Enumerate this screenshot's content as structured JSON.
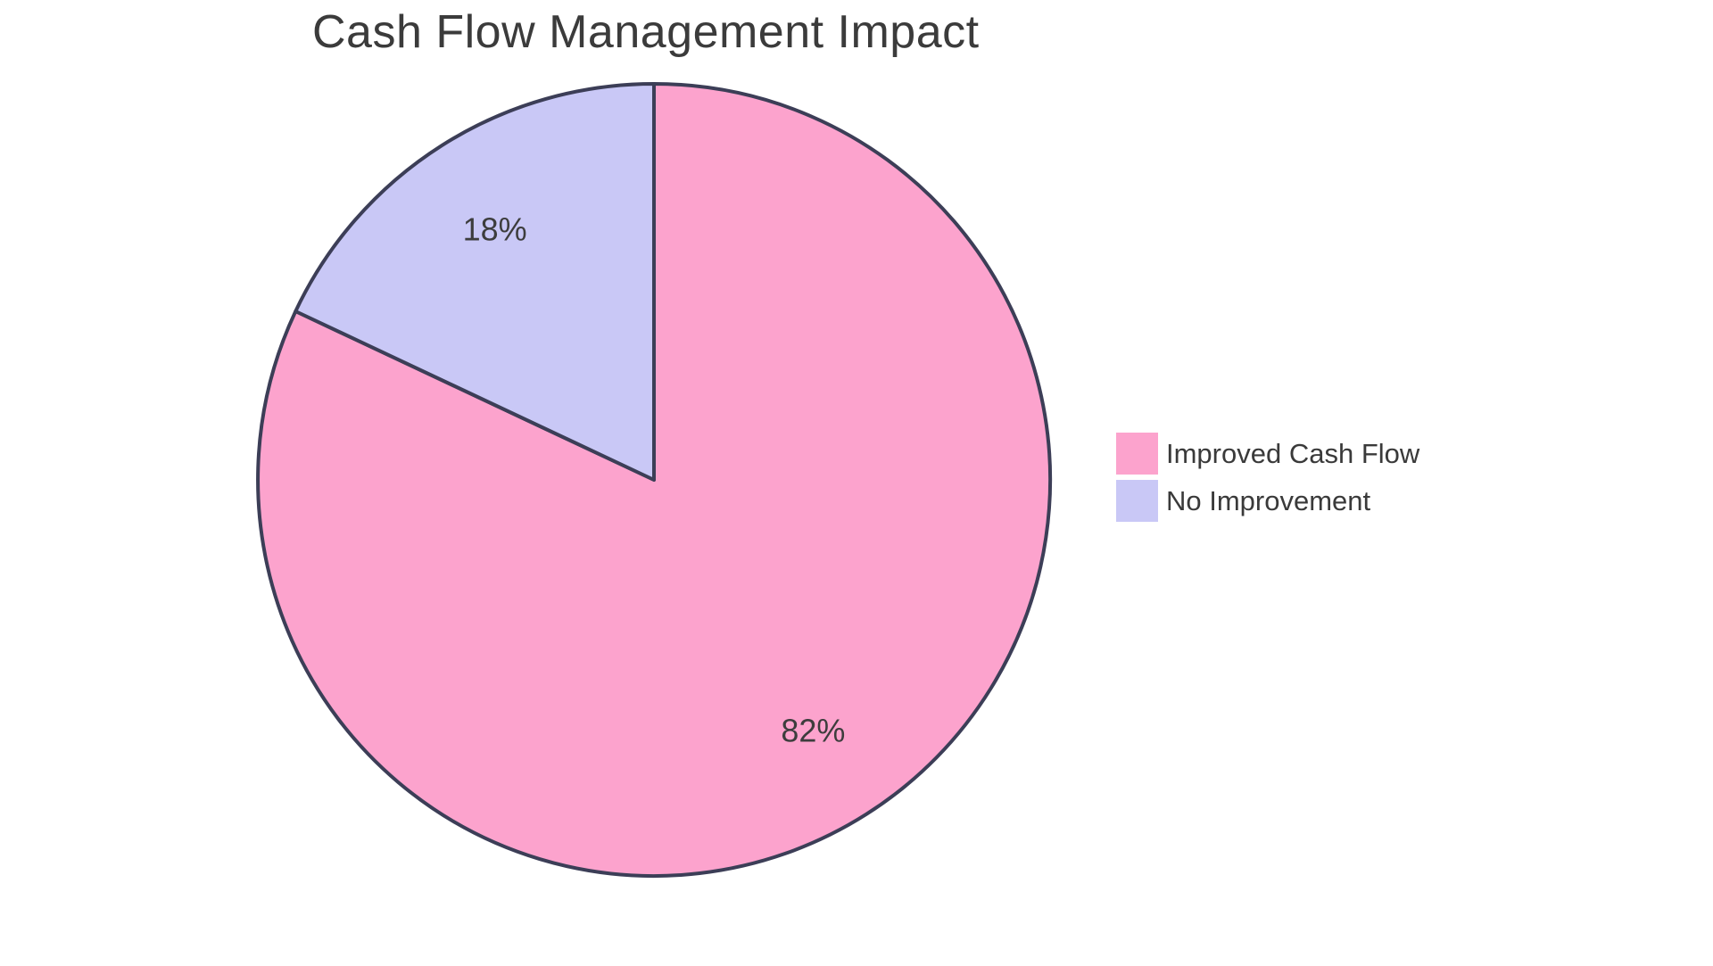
{
  "chart_data": {
    "type": "pie",
    "title": "Cash Flow Management Impact",
    "slices": [
      {
        "label": "Improved Cash Flow",
        "value": 82,
        "pct_label": "82%",
        "color": "#FCA3CD"
      },
      {
        "label": "No Improvement",
        "value": 18,
        "pct_label": "18%",
        "color": "#C9C8F6"
      }
    ],
    "start_angle_deg": 0,
    "direction": "clockwise",
    "legend_position": "right",
    "slice_border_color": "#3C3E57",
    "slice_border_width": 4,
    "label_color": "#3D3D3D",
    "title_color": "#3B3B3B",
    "legend_text_color": "#3A3A3A",
    "background_color": "#FFFFFF"
  }
}
